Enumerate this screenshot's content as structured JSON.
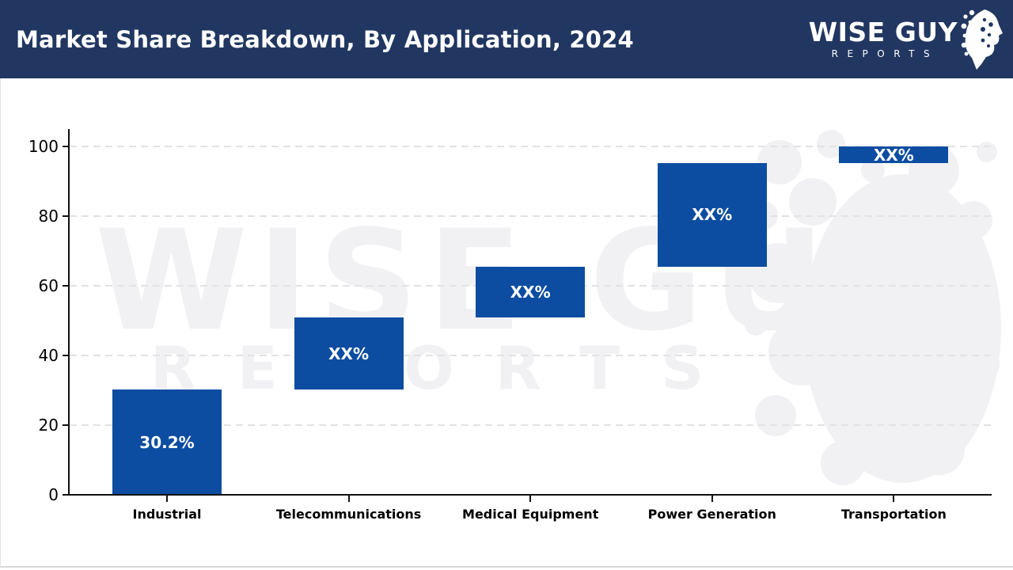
{
  "header": {
    "title": "Market Share Breakdown, By Application, 2024",
    "logo": {
      "line1": "WISE GUY",
      "line2": "REPORTS"
    }
  },
  "watermark": {
    "line1": "WISE GUY",
    "line2": "REPORTS"
  },
  "colors": {
    "header_bg": "#213761",
    "bar": "#0c4da2",
    "bar_label_text": "#ffffff",
    "gridline": "#e2e2e4",
    "axis": "#111111",
    "watermark": "#f1f1f4"
  },
  "chart_data": {
    "type": "bar",
    "subtype": "floating-waterfall",
    "title": "Market Share Breakdown, By Application, 2024",
    "categories": [
      "Industrial",
      "Telecommunications",
      "Medical Equipment",
      "Power Generation",
      "Transportation"
    ],
    "segments": [
      {
        "category": "Industrial",
        "start": 0,
        "end": 30.2,
        "label": "30.2%"
      },
      {
        "category": "Telecommunications",
        "start": 30.2,
        "end": 50.8,
        "label": "XX%"
      },
      {
        "category": "Medical Equipment",
        "start": 50.8,
        "end": 65.5,
        "label": "XX%"
      },
      {
        "category": "Power Generation",
        "start": 65.5,
        "end": 95.2,
        "label": "XX%"
      },
      {
        "category": "Transportation",
        "start": 95.2,
        "end": 100,
        "label": "XX%"
      }
    ],
    "yticks": [
      0,
      20,
      40,
      60,
      80,
      100
    ],
    "ylim": [
      0,
      105
    ],
    "xlabel": "",
    "ylabel": "",
    "grid": "horizontal-dashed",
    "legend": "none",
    "bar_color": "#0c4da2",
    "unit": "percent"
  }
}
